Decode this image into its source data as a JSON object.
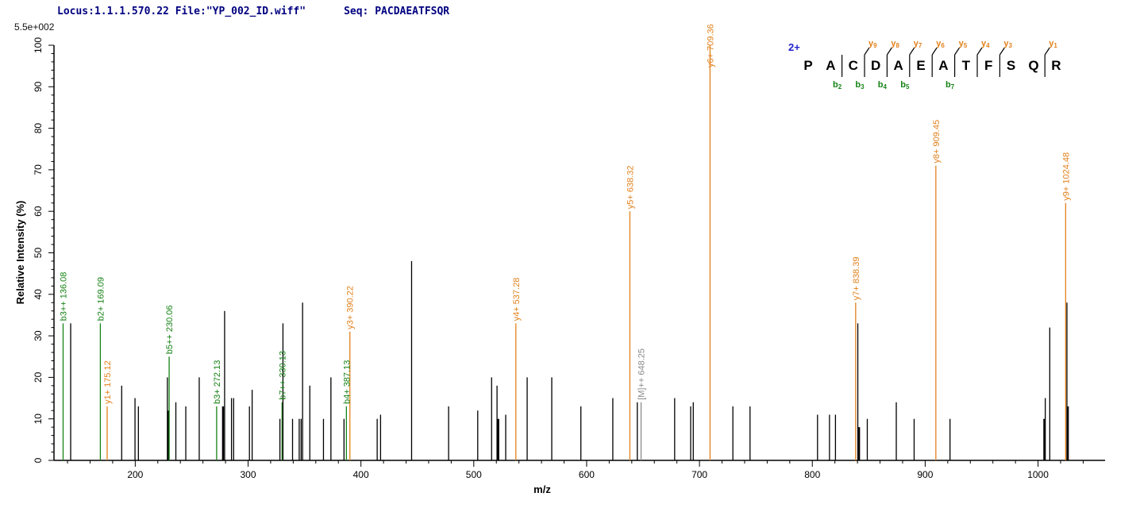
{
  "header": {
    "locus_file": "Locus:1.1.1.570.22 File:\"YP_002_ID.wiff\"",
    "seq": "Seq: PACDAEATFSQR",
    "scale_label": "5.5e+002"
  },
  "colors": {
    "header_text": "#000080",
    "charge_text": "#2222CC",
    "y_ion": "#E2811C",
    "b_ion": "#168316",
    "precursor": "#8A8A8A",
    "peak_unassigned": "#000000",
    "axis": "#000000"
  },
  "sequence_panel": {
    "charge_label": "2+",
    "residues": [
      "P",
      "A",
      "C",
      "D",
      "A",
      "E",
      "A",
      "T",
      "F",
      "S",
      "Q",
      "R"
    ],
    "cleavages": [
      {
        "after": 1,
        "b": "2"
      },
      {
        "after": 2,
        "b": "3",
        "y": "9"
      },
      {
        "after": 3,
        "b": "4",
        "y": "8"
      },
      {
        "after": 4,
        "b": "5",
        "y": "7"
      },
      {
        "after": 5,
        "y": "6"
      },
      {
        "after": 6,
        "b": "7",
        "y": "5"
      },
      {
        "after": 7,
        "y": "4"
      },
      {
        "after": 8,
        "y": "3"
      },
      {
        "after": 10,
        "y": "1"
      }
    ]
  },
  "chart_data": {
    "type": "bar",
    "title": "",
    "xlabel": "m/z",
    "ylabel": "Relative Intensity (%)",
    "xlim": [
      128,
      1058
    ],
    "ylim": [
      0,
      100
    ],
    "grid": false,
    "x_major_ticks": [
      200,
      300,
      400,
      500,
      600,
      700,
      800,
      900,
      1000
    ],
    "x_minor_step": 20,
    "y_major_ticks": [
      0,
      10,
      20,
      30,
      40,
      50,
      60,
      70,
      80,
      90,
      100
    ],
    "y_minor_step": 2,
    "peaks": [
      {
        "mz": 136.08,
        "intensity": 33,
        "ion": "b",
        "label": "b3++ 136.08"
      },
      {
        "mz": 142.8,
        "intensity": 33,
        "ion": "unassigned"
      },
      {
        "mz": 169.09,
        "intensity": 33,
        "ion": "b",
        "label": "b2+ 169.09"
      },
      {
        "mz": 175.12,
        "intensity": 13,
        "ion": "y",
        "label": "y1+ 175.12"
      },
      {
        "mz": 188.0,
        "intensity": 18,
        "ion": "unassigned"
      },
      {
        "mz": 199.8,
        "intensity": 15,
        "ion": "unassigned"
      },
      {
        "mz": 202.8,
        "intensity": 13,
        "ion": "unassigned"
      },
      {
        "mz": 228.5,
        "intensity": 20,
        "ion": "unassigned"
      },
      {
        "mz": 229.4,
        "intensity": 12,
        "ion": "unassigned",
        "w": 2.5
      },
      {
        "mz": 230.06,
        "intensity": 25,
        "ion": "b",
        "label": "b5++ 230.06"
      },
      {
        "mz": 236.0,
        "intensity": 14,
        "ion": "unassigned"
      },
      {
        "mz": 244.8,
        "intensity": 13,
        "ion": "unassigned"
      },
      {
        "mz": 256.7,
        "intensity": 20,
        "ion": "unassigned"
      },
      {
        "mz": 272.13,
        "intensity": 13,
        "ion": "b",
        "label": "b3+ 272.13"
      },
      {
        "mz": 277.8,
        "intensity": 13,
        "ion": "unassigned",
        "w": 2.5
      },
      {
        "mz": 279.2,
        "intensity": 36,
        "ion": "unassigned"
      },
      {
        "mz": 285.3,
        "intensity": 15,
        "ion": "unassigned"
      },
      {
        "mz": 287.2,
        "intensity": 15,
        "ion": "unassigned"
      },
      {
        "mz": 301.2,
        "intensity": 13,
        "ion": "unassigned"
      },
      {
        "mz": 303.6,
        "intensity": 17,
        "ion": "unassigned"
      },
      {
        "mz": 328.2,
        "intensity": 10,
        "ion": "unassigned"
      },
      {
        "mz": 330.13,
        "intensity": 14,
        "ion": "b",
        "label": "b7++ 330.13"
      },
      {
        "mz": 330.9,
        "intensity": 33,
        "ion": "unassigned"
      },
      {
        "mz": 339.4,
        "intensity": 10,
        "ion": "unassigned"
      },
      {
        "mz": 345.3,
        "intensity": 10,
        "ion": "unassigned"
      },
      {
        "mz": 347.0,
        "intensity": 10,
        "ion": "unassigned"
      },
      {
        "mz": 348.3,
        "intensity": 38,
        "ion": "unassigned"
      },
      {
        "mz": 354.7,
        "intensity": 18,
        "ion": "unassigned"
      },
      {
        "mz": 366.8,
        "intensity": 10,
        "ion": "unassigned"
      },
      {
        "mz": 373.4,
        "intensity": 20,
        "ion": "unassigned"
      },
      {
        "mz": 385.0,
        "intensity": 10,
        "ion": "unassigned"
      },
      {
        "mz": 387.13,
        "intensity": 13,
        "ion": "b",
        "label": "b4+ 387.13"
      },
      {
        "mz": 390.22,
        "intensity": 31,
        "ion": "y",
        "label": "y3+ 390.22"
      },
      {
        "mz": 414.4,
        "intensity": 10,
        "ion": "unassigned"
      },
      {
        "mz": 417.4,
        "intensity": 11,
        "ion": "unassigned"
      },
      {
        "mz": 444.9,
        "intensity": 48,
        "ion": "unassigned"
      },
      {
        "mz": 477.7,
        "intensity": 13,
        "ion": "unassigned"
      },
      {
        "mz": 503.5,
        "intensity": 12,
        "ion": "unassigned"
      },
      {
        "mz": 515.8,
        "intensity": 20,
        "ion": "unassigned"
      },
      {
        "mz": 520.6,
        "intensity": 18,
        "ion": "unassigned"
      },
      {
        "mz": 521.7,
        "intensity": 10,
        "ion": "unassigned",
        "w": 2.5
      },
      {
        "mz": 528.3,
        "intensity": 11,
        "ion": "unassigned"
      },
      {
        "mz": 537.28,
        "intensity": 33,
        "ion": "y",
        "label": "y4+ 537.28"
      },
      {
        "mz": 547.3,
        "intensity": 20,
        "ion": "unassigned"
      },
      {
        "mz": 569.1,
        "intensity": 20,
        "ion": "unassigned"
      },
      {
        "mz": 594.9,
        "intensity": 13,
        "ion": "unassigned"
      },
      {
        "mz": 623.2,
        "intensity": 15,
        "ion": "unassigned"
      },
      {
        "mz": 638.32,
        "intensity": 60,
        "ion": "y",
        "label": "y5+ 638.32"
      },
      {
        "mz": 644.9,
        "intensity": 14,
        "ion": "unassigned"
      },
      {
        "mz": 648.25,
        "intensity": 14,
        "ion": "precursor",
        "label": "[M]++ 648.25"
      },
      {
        "mz": 678.0,
        "intensity": 15,
        "ion": "unassigned"
      },
      {
        "mz": 692.2,
        "intensity": 13,
        "ion": "unassigned"
      },
      {
        "mz": 694.5,
        "intensity": 14,
        "ion": "unassigned"
      },
      {
        "mz": 709.36,
        "intensity": 100,
        "ion": "y",
        "label": "y6+ 709.36"
      },
      {
        "mz": 729.6,
        "intensity": 13,
        "ion": "unassigned"
      },
      {
        "mz": 744.8,
        "intensity": 13,
        "ion": "unassigned"
      },
      {
        "mz": 804.6,
        "intensity": 11,
        "ion": "unassigned"
      },
      {
        "mz": 815.2,
        "intensity": 11,
        "ion": "unassigned"
      },
      {
        "mz": 820.5,
        "intensity": 11,
        "ion": "unassigned"
      },
      {
        "mz": 838.39,
        "intensity": 38,
        "ion": "y",
        "label": "y7+ 838.39"
      },
      {
        "mz": 840.3,
        "intensity": 33,
        "ion": "unassigned"
      },
      {
        "mz": 841.4,
        "intensity": 8,
        "ion": "unassigned",
        "w": 2.5
      },
      {
        "mz": 848.7,
        "intensity": 10,
        "ion": "unassigned"
      },
      {
        "mz": 874.4,
        "intensity": 14,
        "ion": "unassigned"
      },
      {
        "mz": 890.2,
        "intensity": 10,
        "ion": "unassigned"
      },
      {
        "mz": 909.45,
        "intensity": 71,
        "ion": "y",
        "label": "y8+ 909.45"
      },
      {
        "mz": 922.0,
        "intensity": 10,
        "ion": "unassigned"
      },
      {
        "mz": 1005.6,
        "intensity": 10,
        "ion": "unassigned",
        "w": 2.5
      },
      {
        "mz": 1006.4,
        "intensity": 15,
        "ion": "unassigned"
      },
      {
        "mz": 1010.4,
        "intensity": 32,
        "ion": "unassigned"
      },
      {
        "mz": 1024.48,
        "intensity": 62,
        "ion": "y",
        "label": "y9+ 1024.48"
      },
      {
        "mz": 1025.6,
        "intensity": 38,
        "ion": "unassigned"
      },
      {
        "mz": 1026.4,
        "intensity": 13,
        "ion": "unassigned",
        "w": 2.5
      }
    ]
  }
}
